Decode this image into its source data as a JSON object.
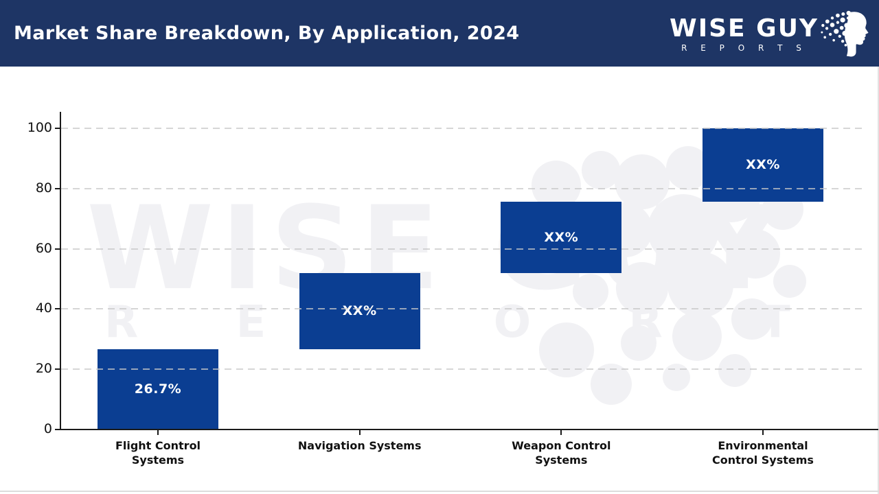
{
  "header": {
    "title": "Market Share Breakdown, By Application, 2024",
    "bg_color": "#1e3565",
    "logo": {
      "wordmark": "WISE GUY",
      "subtitle": "R E P O R T S"
    }
  },
  "watermark": {
    "line1": "WISE GUY",
    "line2": "R E P O R T S"
  },
  "chart_data": {
    "type": "bar",
    "subtype": "floating-segment-waterfall",
    "title": "Market Share Breakdown, By Application, 2024",
    "categories": [
      [
        "Flight Control",
        "Systems"
      ],
      [
        "Navigation Systems"
      ],
      [
        "Weapon Control",
        "Systems"
      ],
      [
        "Environmental",
        "Control Systems"
      ]
    ],
    "bars": [
      {
        "category": "Flight Control Systems",
        "label": "26.7%",
        "start": 0,
        "end": 26.7
      },
      {
        "category": "Navigation Systems",
        "label": "XX%",
        "start": 26.7,
        "end": 52.0
      },
      {
        "category": "Weapon Control Systems",
        "label": "XX%",
        "start": 52.0,
        "end": 75.7
      },
      {
        "category": "Environmental Control Systems",
        "label": "XX%",
        "start": 75.7,
        "end": 100
      }
    ],
    "ylim": [
      0,
      100
    ],
    "yticks": [
      0,
      20,
      40,
      60,
      80,
      100
    ],
    "grid": {
      "horizontal": true,
      "style": "dashed"
    },
    "bar_color": "#0b3e92",
    "value_label_color": "#ffffff",
    "axis_color": "#1a1a1a"
  }
}
